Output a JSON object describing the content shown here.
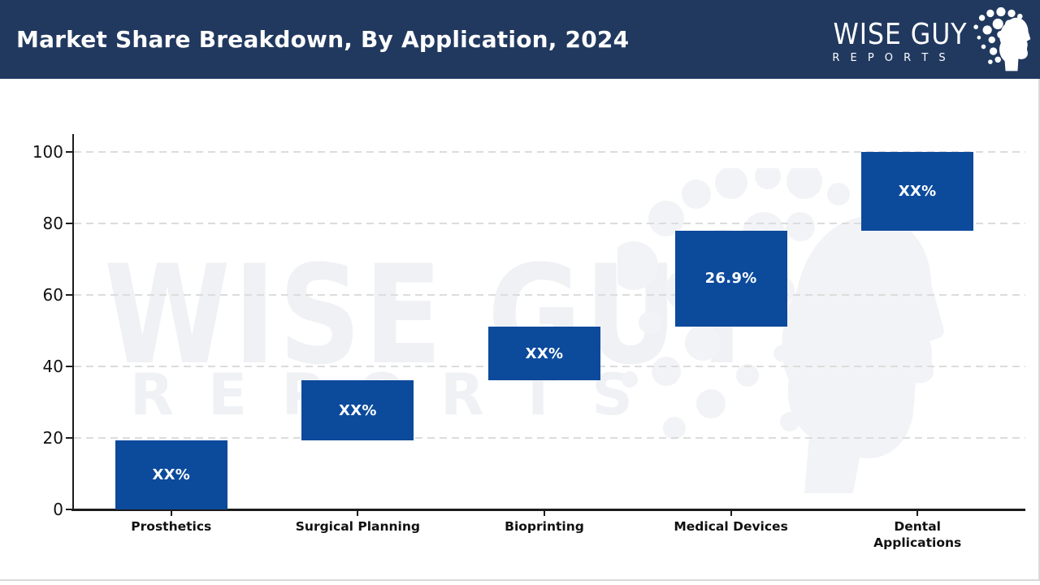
{
  "header": {
    "title": "Market Share Breakdown, By Application, 2024",
    "logo": {
      "line1": "WISE GUY",
      "line2": "R E P O R T S"
    }
  },
  "watermark": {
    "line1": "WISE GUY",
    "line2": "R E P O R T S"
  },
  "colors": {
    "header_bg": "#21395f",
    "bar": "#0c4a9c",
    "bar_label": "#ffffff",
    "gridline": "#dcdcdc",
    "axis": "#1c1c1c",
    "watermark": "#eff1f5"
  },
  "chart_data": {
    "type": "bar",
    "subtype": "waterfall",
    "title": "Market Share Breakdown, By Application, 2024",
    "categories": [
      "Prosthetics",
      "Surgical Planning",
      "Bioprinting",
      "Medical Devices",
      "Dental Applications"
    ],
    "category_label_lines": [
      [
        "Prosthetics"
      ],
      [
        "Surgical Planning"
      ],
      [
        "Bioprinting"
      ],
      [
        "Medical Devices"
      ],
      [
        "Dental",
        "Applications"
      ]
    ],
    "series": [
      {
        "name": "Market share segments (cumulative)",
        "segment_start": [
          0,
          19.3,
          36.1,
          51.1,
          78.0
        ],
        "segment_end": [
          19.3,
          36.1,
          51.1,
          78.0,
          100
        ],
        "bar_labels": [
          "XX%",
          "XX%",
          "XX%",
          "26.9%",
          "XX%"
        ]
      }
    ],
    "xlabel": "",
    "ylabel": "",
    "ylim": [
      0,
      105
    ],
    "yticks": [
      0,
      20,
      40,
      60,
      80,
      100
    ],
    "grid": "horizontal-dashed",
    "legend": "none"
  }
}
